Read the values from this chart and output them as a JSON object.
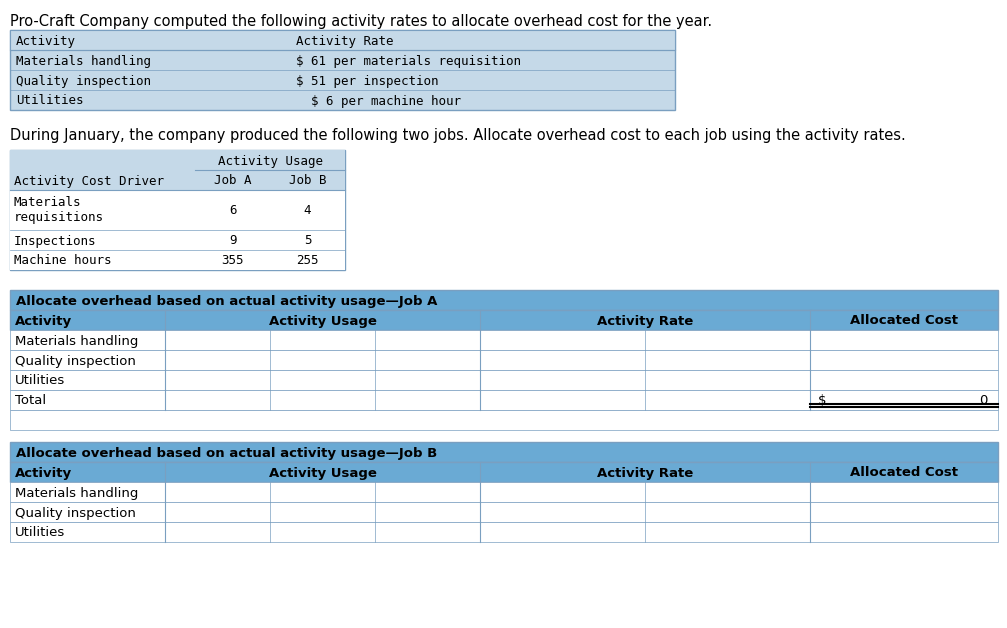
{
  "title1": "Pro-Craft Company computed the following activity rates to allocate overhead cost for the year.",
  "title2": "During January, the company produced the following two jobs. Allocate overhead cost to each job using the activity rates.",
  "table1_header": [
    "Activity",
    "Activity Rate"
  ],
  "table1_rows": [
    [
      "Materials handling",
      "$ 61 per materials requisition"
    ],
    [
      "Quality inspection",
      "$ 51 per inspection"
    ],
    [
      "Utilities",
      "  $ 6 per machine hour"
    ]
  ],
  "table2_col_header1": "Activity Cost Driver",
  "table2_group_header": "Activity Usage",
  "table2_sub_headers": [
    "Job A",
    "Job B"
  ],
  "table2_rows": [
    [
      "Materials\nrequisitions",
      "6",
      "4"
    ],
    [
      "Inspections",
      "9",
      "5"
    ],
    [
      "Machine hours",
      "355",
      "255"
    ]
  ],
  "table3a_title": "Allocate overhead based on actual activity usage—Job A",
  "table3b_title": "Allocate overhead based on actual activity usage—Job B",
  "table3_col_headers": [
    "Activity",
    "Activity Usage",
    "Activity Rate",
    "Allocated Cost"
  ],
  "table3_rows": [
    "Materials handling",
    "Quality inspection",
    "Utilities",
    "Total"
  ],
  "total_dollar": "$",
  "total_value": "0",
  "bg_color": "#ffffff",
  "header_bg": "#6aaad4",
  "header_bg_light": "#c5d9e8",
  "row_bg_white": "#ffffff",
  "table_border": "#7a9fc0",
  "text_dark": "#000000",
  "font_mono": "monospace",
  "font_sans": "sans-serif"
}
